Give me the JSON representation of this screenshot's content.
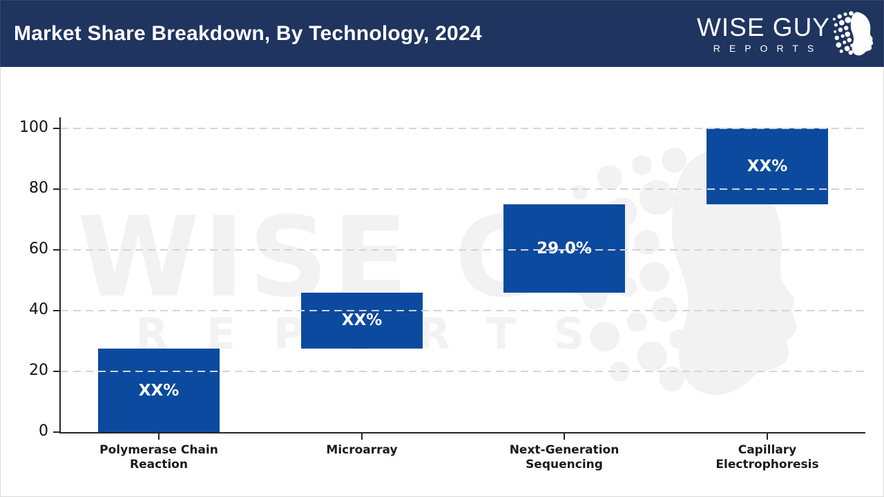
{
  "header": {
    "title": "Market Share Breakdown, By Technology, 2024",
    "logo": {
      "wordmark": "WISE GUY",
      "subtitle": "REPORTS"
    }
  },
  "watermark": {
    "big_text": "WISE GU",
    "sub_text": "REPORTS"
  },
  "chart_data": {
    "type": "bar",
    "variant": "floating-waterfall",
    "title": "Market Share Breakdown, By Technology, 2024",
    "categories": [
      "Polymerase Chain\nReaction",
      "Microarray",
      "Next-Generation\nSequencing",
      "Capillary\nElectrophoresis"
    ],
    "series": [
      {
        "name": "Market Share",
        "segments": [
          {
            "start": 0,
            "end": 27.5,
            "value": 27.5,
            "label": "XX%"
          },
          {
            "start": 27.5,
            "end": 46,
            "value": 18.5,
            "label": "XX%"
          },
          {
            "start": 46,
            "end": 75,
            "value": 29.0,
            "label": "29.0%"
          },
          {
            "start": 75,
            "end": 100,
            "value": 25.0,
            "label": "XX%"
          }
        ]
      }
    ],
    "yticks": [
      0,
      20,
      40,
      60,
      80,
      100
    ],
    "ylim": [
      0,
      104
    ],
    "xlabel": "",
    "ylabel": "",
    "grid": "horizontal-dashed",
    "legend": "none",
    "colors": {
      "bar": "#0b4a9e",
      "bar_label": "#ffffff",
      "axis": "#262626",
      "grid": "#d4d4d6",
      "header_bg": "#1f345f",
      "watermark": "#f2f2f3"
    }
  }
}
